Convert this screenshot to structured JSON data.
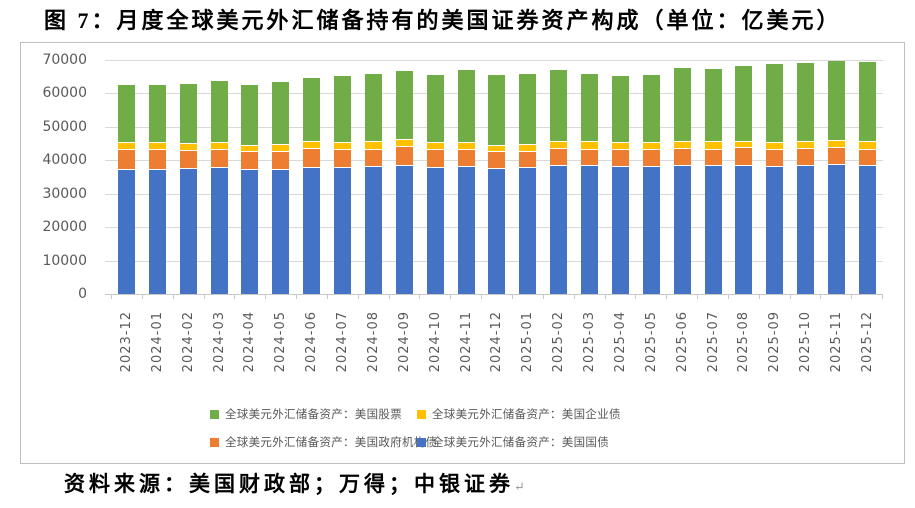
{
  "title": "图 7：月度全球美元外汇储备持有的美国证券资产构成（单位：亿美元）",
  "source_note": "资料来源：美国财政部；万得；中银证券",
  "return_mark": "↵",
  "colors": {
    "treasuries": "#4472C4",
    "agency_bonds": "#ED7D31",
    "corporate_bonds": "#FFC000",
    "stocks": "#70AD47",
    "gridline": "#D9D9D9",
    "axis": "#C9C9C9",
    "tick_label": "#595959",
    "frame_border": "#BFBFBF"
  },
  "chart_data": {
    "type": "bar",
    "stacked": true,
    "title": "月度全球美元外汇储备持有的美国证券资产构成",
    "unit": "亿美元",
    "grid": true,
    "legend_position": "bottom",
    "ylim": [
      0,
      70000
    ],
    "ytick_step": 10000,
    "yticks": [
      0,
      10000,
      20000,
      30000,
      40000,
      50000,
      60000,
      70000
    ],
    "categories": [
      "2023-12",
      "2024-01",
      "2024-02",
      "2024-03",
      "2024-04",
      "2024-05",
      "2024-06",
      "2024-07",
      "2024-08",
      "2024-09",
      "2024-10",
      "2024-11",
      "2024-12",
      "2025-01",
      "2025-02",
      "2025-03",
      "2025-04",
      "2025-05",
      "2025-06",
      "2025-07",
      "2025-08",
      "2025-09",
      "2025-10",
      "2025-11",
      "2025-12"
    ],
    "series": [
      {
        "key": "treasuries",
        "name": "全球美元外汇储备资产：美国国债",
        "color": "#4472C4",
        "values": [
          37400,
          37500,
          37600,
          37900,
          37300,
          37500,
          38100,
          37900,
          38300,
          38700,
          38100,
          38300,
          37700,
          37900,
          38700,
          38500,
          38300,
          38300,
          38500,
          38500,
          38700,
          38300,
          38700,
          38900,
          38500
        ]
      },
      {
        "key": "agency_bonds",
        "name": "全球美元外汇储备资产：美国政府机构债",
        "color": "#ED7D31",
        "values": [
          6000,
          5900,
          5600,
          5600,
          5400,
          5400,
          5600,
          5600,
          5200,
          5600,
          5200,
          5000,
          5000,
          5000,
          5000,
          5000,
          5000,
          5000,
          5200,
          5000,
          5200,
          5200,
          5000,
          5000,
          5000
        ]
      },
      {
        "key": "corporate_bonds",
        "name": "全球美元外汇储备资产：美国企业债",
        "color": "#FFC000",
        "values": [
          2200,
          2100,
          2000,
          2000,
          1800,
          2000,
          2000,
          2000,
          2200,
          2200,
          2200,
          2200,
          2000,
          2000,
          2200,
          2200,
          2200,
          2200,
          2200,
          2200,
          2000,
          2000,
          2000,
          2200,
          2200
        ]
      },
      {
        "key": "stocks",
        "name": "全球美元外汇储备资产：美国股票",
        "color": "#70AD47",
        "values": [
          16800,
          16900,
          17700,
          18300,
          17900,
          18500,
          18800,
          19800,
          20100,
          20300,
          19900,
          21500,
          20700,
          21000,
          21100,
          20000,
          19600,
          20100,
          21600,
          21700,
          22200,
          23200,
          23300,
          23600,
          23800
        ]
      }
    ],
    "legend_rows": [
      [
        3,
        2
      ],
      [
        1,
        0
      ]
    ]
  }
}
